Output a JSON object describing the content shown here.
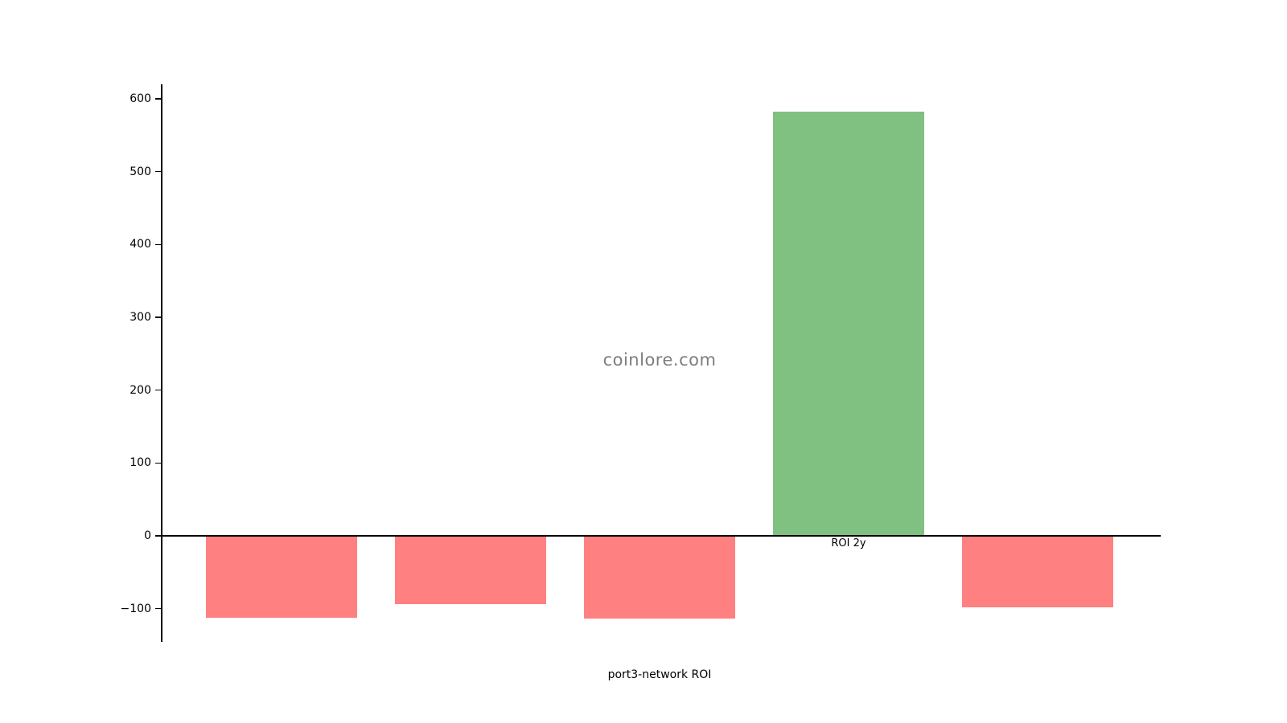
{
  "watermark": "coinlore.com",
  "chart_data": {
    "type": "bar",
    "title": "",
    "xlabel": "port3-network ROI",
    "ylabel": "",
    "categories": [
      "",
      "",
      "",
      "ROI 2y",
      ""
    ],
    "values": [
      -113,
      -94,
      -114,
      582,
      -98
    ],
    "yticks": [
      600,
      500,
      400,
      300,
      200,
      100,
      0,
      -100
    ],
    "ylim": [
      -145,
      620
    ],
    "grid": false,
    "legend": false,
    "positive_color": "#80c080",
    "negative_color": "#ff8080",
    "axis_color": "#000000",
    "tick_text_color": "#000000",
    "watermark_color": "#7d7d7d"
  }
}
